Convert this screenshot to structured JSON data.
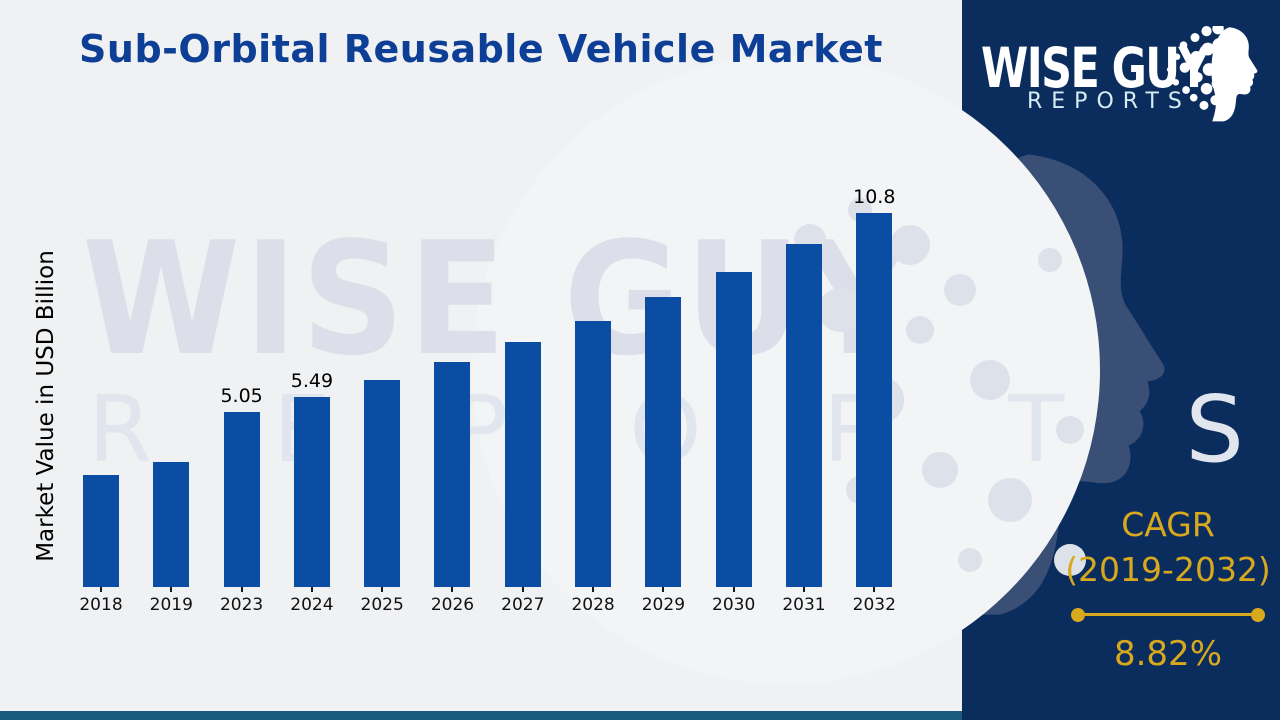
{
  "title": "Sub-Orbital Reusable Vehicle Market",
  "y_axis_label": "Market Value in USD Billion",
  "brand_logo": {
    "line1": "WISE GUY",
    "line2": "REPORTS",
    "face_icon": "face-profile-icon"
  },
  "watermark": {
    "line1": "WISE GUY",
    "line2": "R E P O R T S"
  },
  "cagr": {
    "heading": "CAGR",
    "range": "(2019-2032)",
    "value": "8.82%"
  },
  "colors": {
    "bar": "#0B4DA3",
    "navy_panel": "#0A2D5E",
    "face_silhouette": "#3A4F75",
    "gold": "#D8A81D",
    "title_blue": "#0D3F96",
    "teal_strip": "#1B5C7E",
    "background": "#f0f1f2"
  },
  "chart_data": {
    "type": "bar",
    "title": "Sub-Orbital Reusable Vehicle Market",
    "xlabel": "",
    "ylabel": "Market Value in USD Billion",
    "unit": "USD Billion",
    "categories": [
      "2018",
      "2019",
      "2023",
      "2024",
      "2025",
      "2026",
      "2027",
      "2028",
      "2029",
      "2030",
      "2031",
      "2032"
    ],
    "values": [
      3.24,
      3.61,
      5.05,
      5.49,
      5.98,
      6.5,
      7.08,
      7.69,
      8.37,
      9.11,
      9.91,
      10.8
    ],
    "data_labels": {
      "2023": "5.05",
      "2024": "5.49",
      "2032": "10.8"
    },
    "ylim": [
      0,
      11.8
    ],
    "grid": false,
    "legend": false
  }
}
